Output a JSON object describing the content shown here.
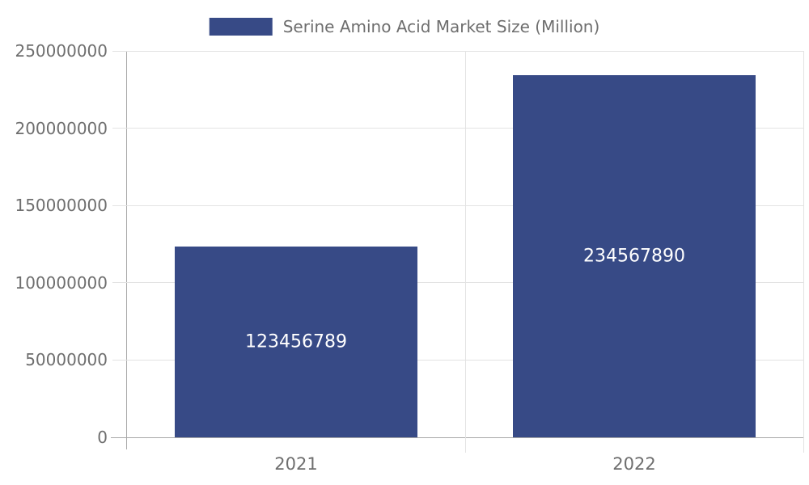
{
  "legend": {
    "label": "Serine Amino Acid Market Size (Million)"
  },
  "colors": {
    "bar": "#374a86",
    "grid": "#e3e3e3",
    "axis": "#a8a8a8",
    "text": "#6e6e6e",
    "bar_label": "#ffffff",
    "background": "#ffffff"
  },
  "chart_data": {
    "type": "bar",
    "categories": [
      "2021",
      "2022"
    ],
    "series": [
      {
        "name": "Serine Amino Acid Market Size (Million)",
        "values": [
          123456789,
          234567890
        ]
      }
    ],
    "value_labels": [
      "123456789",
      "234567890"
    ],
    "title": "",
    "xlabel": "",
    "ylabel": "",
    "ylim": [
      0,
      250000000
    ],
    "yticks": [
      0,
      50000000,
      100000000,
      150000000,
      200000000,
      250000000
    ],
    "ytick_labels": [
      "0",
      "50000000",
      "100000000",
      "150000000",
      "200000000",
      "250000000"
    ],
    "grid": true,
    "legend_position": "top",
    "bar_width_fraction": 0.72,
    "value_label_position": "inside-center"
  }
}
